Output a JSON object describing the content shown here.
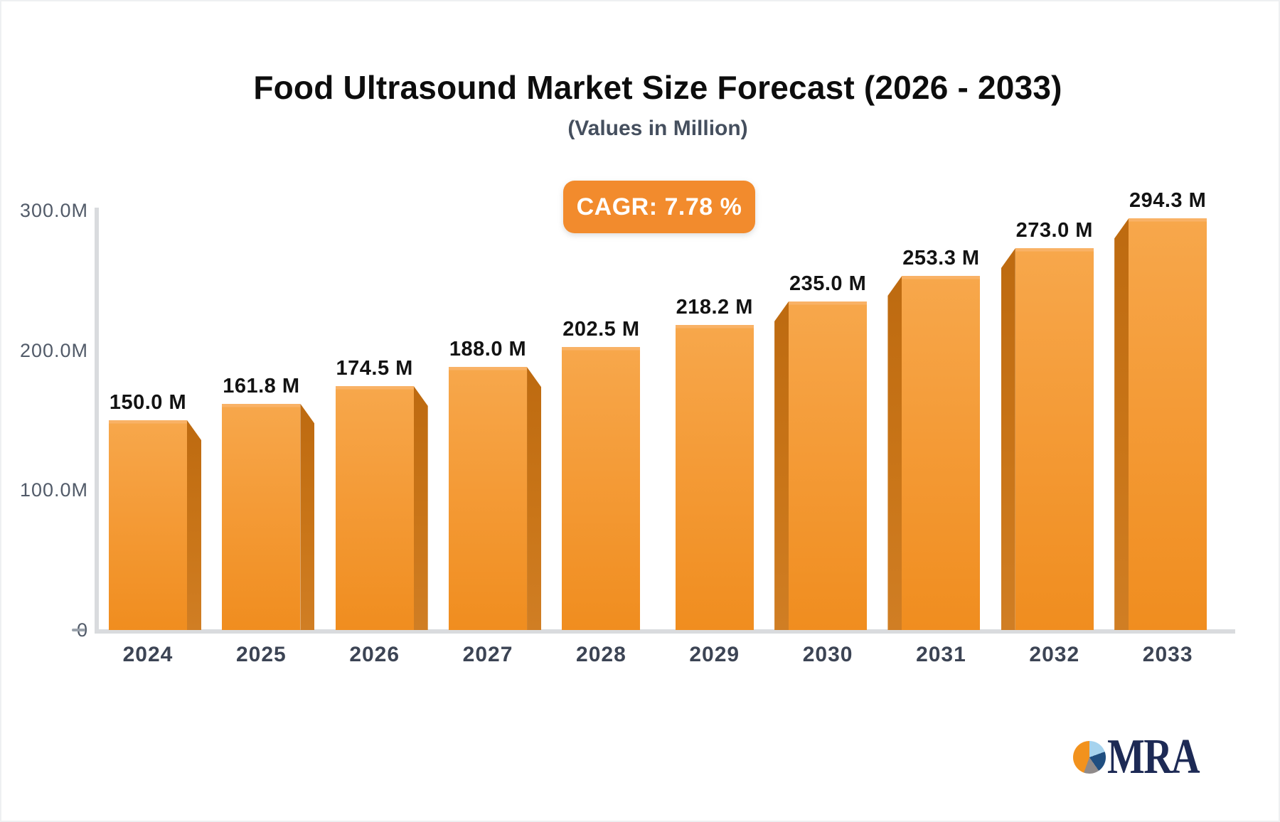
{
  "title": "Food Ultrasound Market Size Forecast (2026 - 2033)",
  "subtitle": "(Values in Million)",
  "badge": {
    "label": "CAGR: 7.78 %",
    "bg_color": "#f28b2d",
    "text_color": "#ffffff"
  },
  "logo": {
    "text": "MRA",
    "pie_icon_colors": [
      "#f2921d",
      "#a6d3ee",
      "#1f4e80",
      "#8f8a8a"
    ]
  },
  "colors": {
    "bar_face_top": "#f7a74b",
    "bar_face_bottom": "#f08d1f",
    "bar_bevel": "#f9b266",
    "bar_side_dark": "#bd6a10",
    "axis_line": "#d9dbde",
    "title_text": "#0d0d0d",
    "subtitle_text": "#454f5e",
    "tick_text": "#525b69",
    "category_text": "#3c4454",
    "value_text": "#131313"
  },
  "chart_data": {
    "type": "bar",
    "title": "Food Ultrasound Market Size Forecast (2026 - 2033)",
    "subtitle": "(Values in Million)",
    "annotation": "CAGR: 7.78 %",
    "xlabel": "",
    "ylabel": "",
    "categories": [
      "2024",
      "2025",
      "2026",
      "2027",
      "2028",
      "2029",
      "2030",
      "2031",
      "2032",
      "2033"
    ],
    "values": [
      150.0,
      161.8,
      174.5,
      188.0,
      202.5,
      218.2,
      235.0,
      253.3,
      273.0,
      294.3
    ],
    "value_labels": [
      "150.0 M",
      "161.8 M",
      "174.5 M",
      "188.0 M",
      "202.5 M",
      "218.2 M",
      "235.0 M",
      "253.3 M",
      "273.0 M",
      "294.3 M"
    ],
    "unit": "Million",
    "ylim": [
      0,
      300
    ],
    "yticks": [
      {
        "label": "300.0M",
        "value": 300,
        "dash": false
      },
      {
        "label": "200.0M",
        "value": 200,
        "dash": false
      },
      {
        "label": "100.0M",
        "value": 100,
        "dash": false
      },
      {
        "label": "0",
        "value": 0,
        "dash": true
      }
    ],
    "grid": false,
    "legend": false,
    "bar_3d_side": [
      "right",
      "right",
      "right",
      "right",
      "none",
      "none",
      "left",
      "left",
      "left",
      "left"
    ]
  }
}
